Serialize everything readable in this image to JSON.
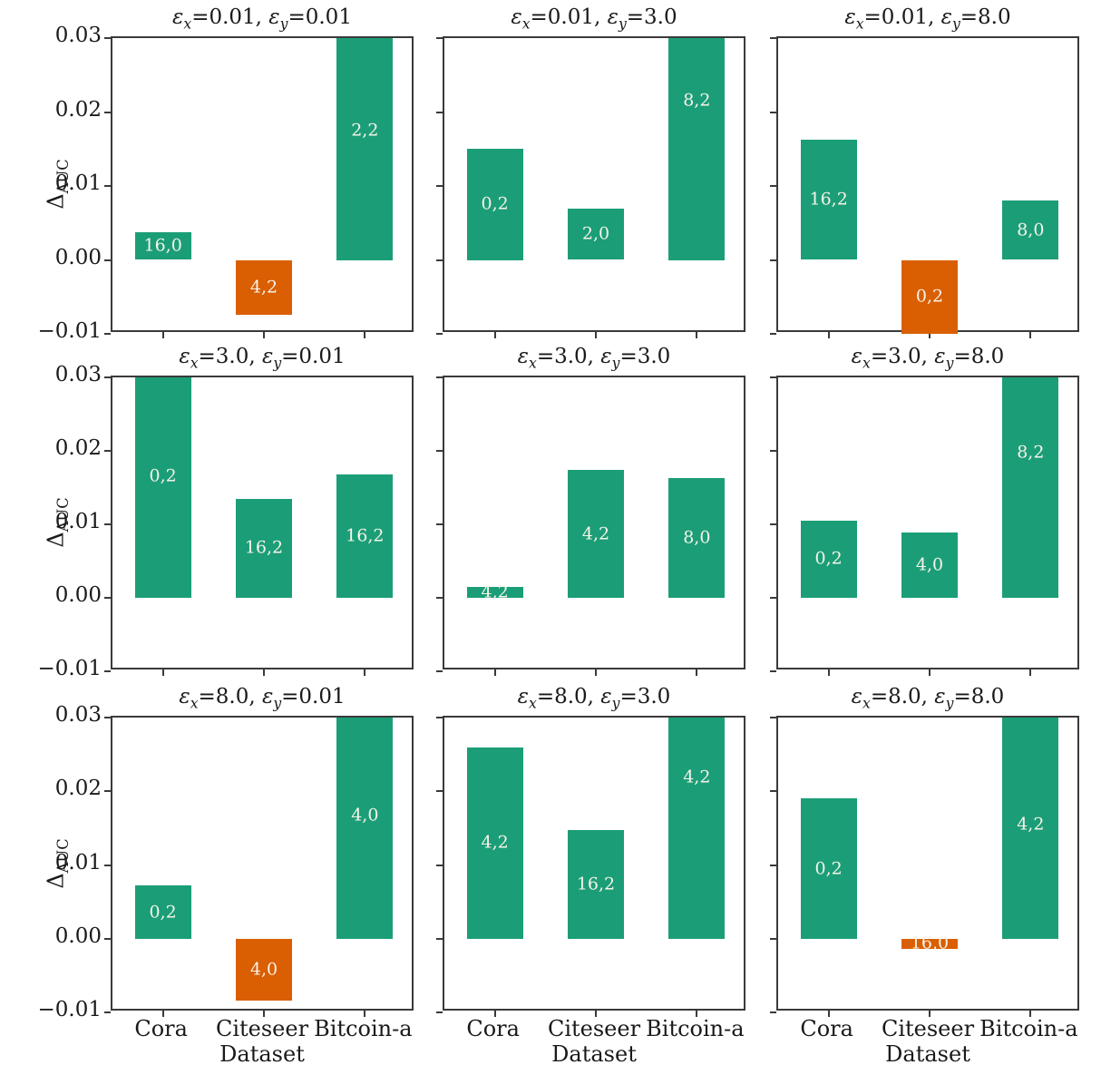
{
  "chart_data": {
    "type": "bar",
    "figure_description": "3x3 grid of bar subplots of AUC difference per dataset for privacy budgets epsilon_x and epsilon_y",
    "grid": {
      "rows": 3,
      "cols": 3
    },
    "categories": [
      "Cora",
      "Citeseer",
      "Bitcoin-a"
    ],
    "xlabel": "Dataset",
    "ylabel": {
      "symbol": "Δ",
      "subscript": "AUC"
    },
    "ylim": [
      -0.01,
      0.03
    ],
    "yticks": [
      {
        "v": 0.03,
        "label": "0.03"
      },
      {
        "v": 0.02,
        "label": "0.02"
      },
      {
        "v": 0.01,
        "label": "0.01"
      },
      {
        "v": 0.0,
        "label": "0.00"
      },
      {
        "v": -0.01,
        "label": "−0.01"
      }
    ],
    "legend": "none",
    "grid_lines": false,
    "colors": {
      "positive_bar": "#1b9e77",
      "negative_bar": "#d95f02",
      "bar_label_text": "#f7f3e9",
      "axis": "#3a3a3a",
      "text": "#1a1a1a"
    },
    "title_template": {
      "epsilon": "ε",
      "sub_x": "x",
      "sub_y": "y"
    },
    "subplots": [
      {
        "title": {
          "ex": "0.01",
          "ey": "0.01"
        },
        "bars": [
          {
            "category": "Cora",
            "value": 0.0037,
            "label": "16,0",
            "clipped": false
          },
          {
            "category": "Citeseer",
            "value": -0.0074,
            "label": "4,2",
            "clipped": false
          },
          {
            "category": "Bitcoin-a",
            "value": 0.035,
            "label": "2,2",
            "clipped": true
          }
        ]
      },
      {
        "title": {
          "ex": "0.01",
          "ey": "3.0"
        },
        "bars": [
          {
            "category": "Cora",
            "value": 0.015,
            "label": "0,2",
            "clipped": false
          },
          {
            "category": "Citeseer",
            "value": 0.0069,
            "label": "2,0",
            "clipped": false
          },
          {
            "category": "Bitcoin-a",
            "value": 0.043,
            "label": "8,2",
            "clipped": true
          }
        ]
      },
      {
        "title": {
          "ex": "0.01",
          "ey": "8.0"
        },
        "bars": [
          {
            "category": "Cora",
            "value": 0.0163,
            "label": "16,2",
            "clipped": false
          },
          {
            "category": "Citeseer",
            "value": -0.01,
            "label": "0,2",
            "clipped": false
          },
          {
            "category": "Bitcoin-a",
            "value": 0.008,
            "label": "8,0",
            "clipped": false
          }
        ]
      },
      {
        "title": {
          "ex": "3.0",
          "ey": "0.01"
        },
        "bars": [
          {
            "category": "Cora",
            "value": 0.033,
            "label": "0,2",
            "clipped": true
          },
          {
            "category": "Citeseer",
            "value": 0.0135,
            "label": "16,2",
            "clipped": false
          },
          {
            "category": "Bitcoin-a",
            "value": 0.0168,
            "label": "16,2",
            "clipped": false
          }
        ]
      },
      {
        "title": {
          "ex": "3.0",
          "ey": "3.0"
        },
        "bars": [
          {
            "category": "Cora",
            "value": 0.0015,
            "label": "4,2",
            "clipped": false
          },
          {
            "category": "Citeseer",
            "value": 0.0174,
            "label": "4,2",
            "clipped": false
          },
          {
            "category": "Bitcoin-a",
            "value": 0.0163,
            "label": "8,0",
            "clipped": false
          }
        ]
      },
      {
        "title": {
          "ex": "3.0",
          "ey": "8.0"
        },
        "bars": [
          {
            "category": "Cora",
            "value": 0.0105,
            "label": "0,2",
            "clipped": false
          },
          {
            "category": "Citeseer",
            "value": 0.0089,
            "label": "4,0",
            "clipped": false
          },
          {
            "category": "Bitcoin-a",
            "value": 0.0395,
            "label": "8,2",
            "clipped": true
          }
        ]
      },
      {
        "title": {
          "ex": "8.0",
          "ey": "0.01"
        },
        "bars": [
          {
            "category": "Cora",
            "value": 0.0072,
            "label": "0,2",
            "clipped": false
          },
          {
            "category": "Citeseer",
            "value": -0.0084,
            "label": "4,0",
            "clipped": false
          },
          {
            "category": "Bitcoin-a",
            "value": 0.0335,
            "label": "4,0",
            "clipped": true
          }
        ]
      },
      {
        "title": {
          "ex": "8.0",
          "ey": "3.0"
        },
        "bars": [
          {
            "category": "Cora",
            "value": 0.026,
            "label": "4,2",
            "clipped": false
          },
          {
            "category": "Citeseer",
            "value": 0.0148,
            "label": "16,2",
            "clipped": false
          },
          {
            "category": "Bitcoin-a",
            "value": 0.0438,
            "label": "4,2",
            "clipped": true
          }
        ]
      },
      {
        "title": {
          "ex": "8.0",
          "ey": "8.0"
        },
        "bars": [
          {
            "category": "Cora",
            "value": 0.019,
            "label": "0,2",
            "clipped": false
          },
          {
            "category": "Citeseer",
            "value": -0.0014,
            "label": "16,0",
            "clipped": false
          },
          {
            "category": "Bitcoin-a",
            "value": 0.031,
            "label": "4,2",
            "clipped": true
          }
        ]
      }
    ]
  }
}
